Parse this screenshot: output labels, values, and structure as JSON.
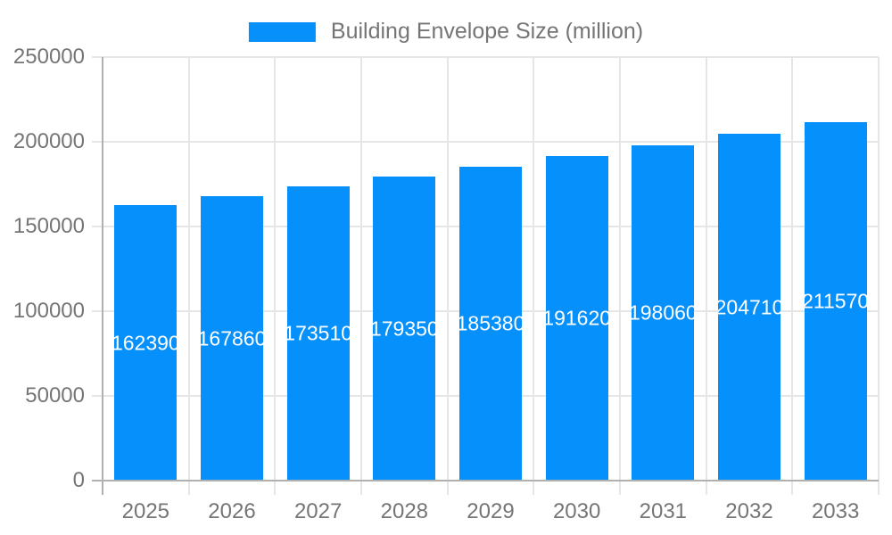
{
  "chart_data": {
    "type": "bar",
    "title": "",
    "legend": "Building Envelope Size (million)",
    "legend_position": "top-center",
    "categories": [
      "2025",
      "2026",
      "2027",
      "2028",
      "2029",
      "2030",
      "2031",
      "2032",
      "2033"
    ],
    "values": [
      162390,
      167860,
      173510,
      179350,
      185380,
      191620,
      198060,
      204710,
      211570
    ],
    "bar_value_labels": [
      "162390",
      "167860",
      "173510",
      "179350",
      "185380",
      "191620",
      "198060",
      "204710",
      "211570"
    ],
    "xlabel": "",
    "ylabel": "",
    "ylim": [
      0,
      250000
    ],
    "yticks": [
      0,
      50000,
      100000,
      150000,
      200000,
      250000
    ],
    "grid": "on",
    "bar_label_style": "inside-center-white",
    "series_color": "#0690fb",
    "bar_label_color": "#ffffff",
    "axis_text_color": "#757575",
    "gridline_color": "#e6e6e6",
    "baseline_color": "#b0b0b0"
  }
}
